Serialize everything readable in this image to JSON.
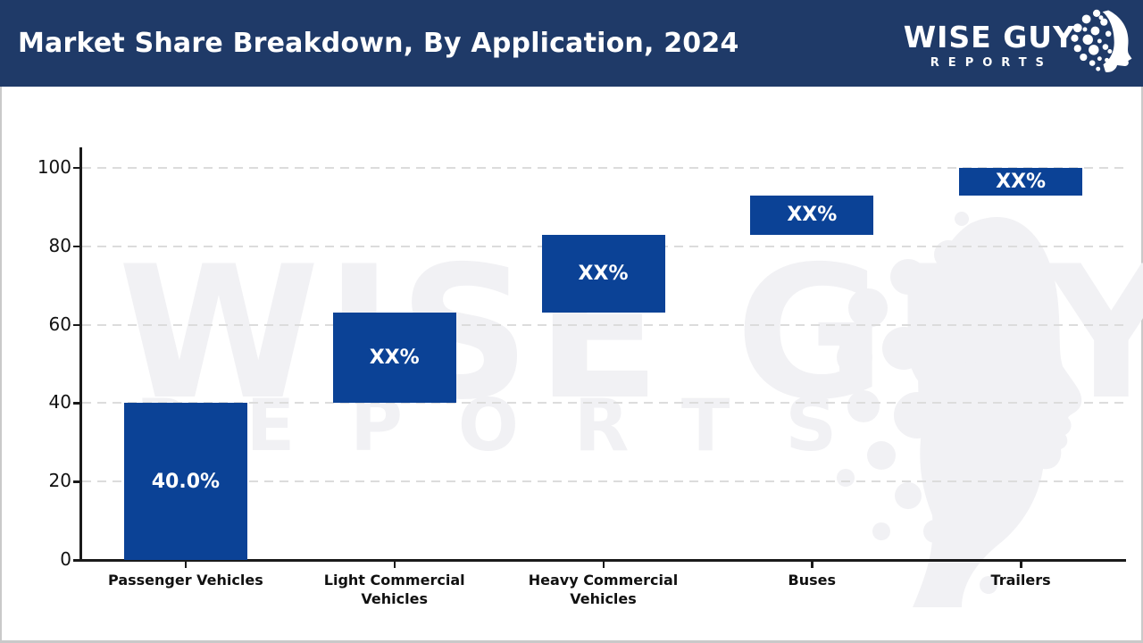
{
  "header": {
    "title": "Market Share Breakdown, By Application, 2024",
    "logo_line1": "WISE GUY",
    "logo_line2": "REPORTS",
    "bg_color": "#1f3a68"
  },
  "watermark": {
    "line1": "WISE GUY",
    "line2": "REPORTS"
  },
  "chart_data": {
    "type": "bar",
    "subtype": "waterfall",
    "title": "Market Share Breakdown, By Application, 2024",
    "xlabel": "",
    "ylabel": "",
    "categories": [
      "Passenger Vehicles",
      "Light Commercial Vehicles",
      "Heavy Commercial Vehicles",
      "Buses",
      "Trailers"
    ],
    "segments": [
      {
        "category": "Passenger Vehicles",
        "start": 0,
        "end": 40,
        "label": "40.0%"
      },
      {
        "category": "Light Commercial Vehicles",
        "start": 40,
        "end": 63,
        "label": "XX%"
      },
      {
        "category": "Heavy Commercial Vehicles",
        "start": 63,
        "end": 83,
        "label": "XX%"
      },
      {
        "category": "Buses",
        "start": 83,
        "end": 93,
        "label": "XX%"
      },
      {
        "category": "Trailers",
        "start": 93,
        "end": 100,
        "label": "XX%"
      }
    ],
    "y_ticks": [
      0,
      20,
      40,
      60,
      80,
      100
    ],
    "ylim": [
      0,
      105
    ],
    "grid": "horizontal-dashed",
    "legend": "none",
    "bar_color": "#0b4296",
    "grid_color": "#dcdcdc",
    "axis_color": "#1a1a1a"
  }
}
